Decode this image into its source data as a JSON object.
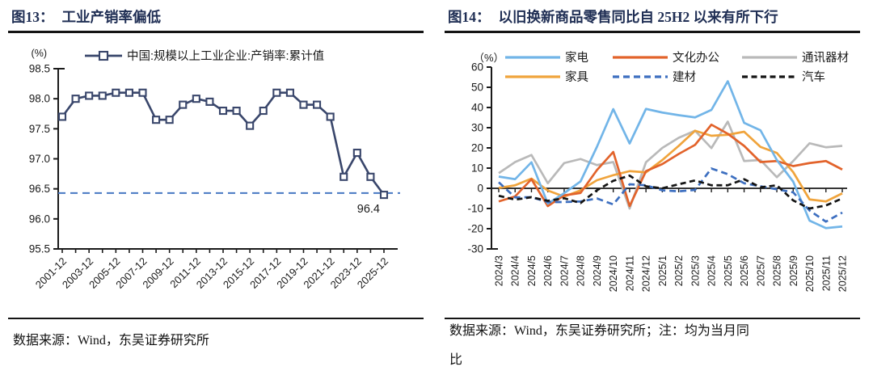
{
  "panels": [
    {
      "title_prefix": "图13：",
      "title": "工业产销率偏低",
      "source_lines": [
        "数据来源：Wind，东吴证券研究所"
      ],
      "chart_data": {
        "type": "line",
        "unit_label": "(%)",
        "legend": [
          "中国:规模以上工业企业:产销率:累计值"
        ],
        "x": [
          "2001-12",
          "2002-12",
          "2003-12",
          "2004-12",
          "2005-12",
          "2006-12",
          "2007-12",
          "2008-12",
          "2009-12",
          "2010-12",
          "2011-12",
          "2012-12",
          "2013-12",
          "2014-12",
          "2015-12",
          "2016-12",
          "2017-12",
          "2018-12",
          "2019-12",
          "2020-12",
          "2021-12",
          "2022-12",
          "2023-12",
          "2024-12",
          "2025-12"
        ],
        "x_label_every": 2,
        "ylim": [
          95.5,
          98.5
        ],
        "yticks": [
          "98.5",
          "98.0",
          "97.5",
          "97.0",
          "96.5",
          "96.0",
          "95.5"
        ],
        "series": [
          {
            "name": "中国:规模以上工业企业:产销率:累计值",
            "color": "#39466B",
            "marker": "square",
            "values": [
              97.7,
              98.0,
              98.05,
              98.05,
              98.1,
              98.1,
              98.1,
              97.65,
              97.65,
              97.9,
              98.0,
              97.95,
              97.8,
              97.8,
              97.55,
              97.8,
              98.1,
              98.1,
              97.9,
              97.9,
              97.7,
              96.7,
              97.1,
              96.7,
              96.4
            ]
          }
        ],
        "ref_line": {
          "value": 96.43,
          "color": "#4778C2",
          "style": "dashed",
          "label": "96.4"
        }
      }
    },
    {
      "title_prefix": "图14：",
      "title": "以旧换新商品零售同比自 25H2 以来有所下行",
      "source_lines": [
        "数据来源：Wind，东吴证券研究所；注：均为当月同",
        "比"
      ],
      "chart_data": {
        "type": "line",
        "unit_label": "（%）",
        "x": [
          "2024/3",
          "2024/4",
          "2024/5",
          "2024/6",
          "2024/7",
          "2024/8",
          "2024/9",
          "2024/10",
          "2024/11",
          "2024/12",
          "2025/1",
          "2025/2",
          "2025/3",
          "2025/4",
          "2025/5",
          "2025/6",
          "2025/7",
          "2025/8",
          "2025/9",
          "2025/10",
          "2025/11",
          "2025/12"
        ],
        "x_label_every": 1,
        "ylim": [
          -30,
          60
        ],
        "yticks": [
          "60",
          "50",
          "40",
          "30",
          "20",
          "10",
          "0",
          "-10",
          "-20",
          "-30"
        ],
        "legend_rows": [
          [
            "家电",
            "文化办公",
            "通讯器材"
          ],
          [
            "家具",
            "建材",
            "汽车"
          ]
        ],
        "series": [
          {
            "name": "通讯器材",
            "color": "#B9B9B9",
            "dash": null,
            "values": [
              7.5,
              13.0,
              16.5,
              2.5,
              12.5,
              14.5,
              11.5,
              13.0,
              -10.0,
              12.9,
              20.0,
              25.0,
              28.5,
              19.9,
              33.0,
              13.5,
              14.0,
              5.5,
              13.5,
              22.3,
              20.3,
              21.0
            ]
          },
          {
            "name": "家具",
            "color": "#F0A43C",
            "dash": null,
            "values": [
              0.2,
              1.5,
              4.8,
              -1.1,
              -4.1,
              -1.0,
              4.0,
              6.5,
              8.5,
              7.9,
              14.0,
              21.0,
              28.5,
              26.0,
              26.5,
              28.0,
              20.5,
              17.5,
              8.0,
              -5.5,
              -6.5,
              -2.5
            ]
          },
          {
            "name": "文化办公",
            "color": "#E2632B",
            "dash": null,
            "values": [
              -6.5,
              -4.0,
              4.5,
              -8.8,
              -3.5,
              -2.3,
              9.0,
              18.0,
              -8.8,
              8.5,
              12.0,
              17.0,
              21.5,
              31.5,
              27.0,
              21.0,
              13.0,
              13.5,
              11.0,
              12.5,
              13.5,
              9.3
            ]
          },
          {
            "name": "家电",
            "color": "#72B5E8",
            "dash": null,
            "values": [
              5.8,
              4.5,
              12.9,
              -7.6,
              -2.4,
              3.4,
              20.5,
              39.2,
              22.2,
              39.3,
              37.5,
              36.2,
              35.1,
              38.8,
              53.0,
              32.4,
              28.7,
              14.0,
              3.3,
              -16.0,
              -19.7,
              -18.9
            ]
          },
          {
            "name": "建材",
            "color": "#3D6FC0",
            "dash": "8 5",
            "values": [
              3.0,
              -4.5,
              -4.4,
              -6.8,
              -6.8,
              -6.5,
              -5.0,
              -8.0,
              2.0,
              1.5,
              -1.0,
              -1.5,
              -0.8,
              9.8,
              7.0,
              2.5,
              1.0,
              -0.5,
              -2.0,
              -11.0,
              -16.5,
              -12.0
            ]
          },
          {
            "name": "汽车",
            "color": "#141414",
            "dash": "7 4.5",
            "values": [
              -3.7,
              -5.6,
              -4.4,
              -6.2,
              -4.9,
              -7.3,
              -1.0,
              3.7,
              6.3,
              1.0,
              0.0,
              2.0,
              3.9,
              1.5,
              1.5,
              4.5,
              0.5,
              1.5,
              -6.0,
              -10.0,
              -8.5,
              -5.0
            ]
          }
        ]
      }
    }
  ]
}
